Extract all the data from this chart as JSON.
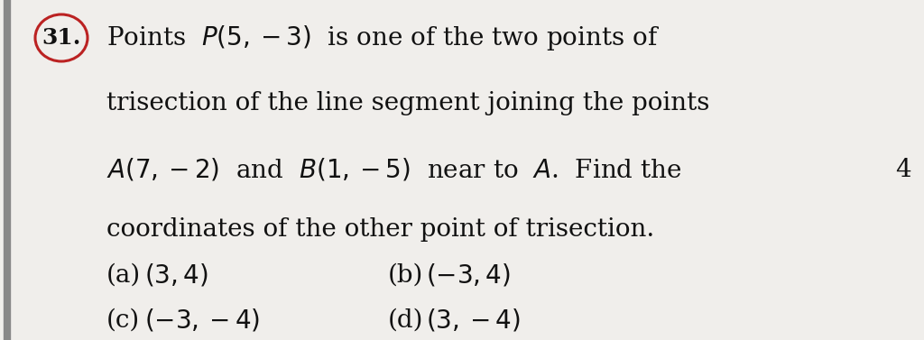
{
  "background_color": "#f0eeeb",
  "question_number": "31.",
  "circle_color": "#bb2222",
  "line1": "Points  $P(5,-3)$  is one of the two points of",
  "line2": "trisection of the line segment joining the points",
  "line3": "$A(7,-2)$  and  $B(1,-5)$  near to  $A$.  Find the",
  "line4": "coordinates of the other point of trisection.",
  "opt_a_label": "(a)",
  "opt_a_val": "$(3, 4)$",
  "opt_b_label": "(b)",
  "opt_b_val": "$(-3, 4)$",
  "opt_c_label": "(c)",
  "opt_c_val": "$(-3, -4)$",
  "opt_d_label": "(d)",
  "opt_d_val": "$(3, -4)$",
  "side_number": "4",
  "text_color": "#111111",
  "font_size_main": 20,
  "font_size_options": 20,
  "font_size_circle": 18,
  "left_bar_color": "#888888",
  "left_bar_width": 6
}
